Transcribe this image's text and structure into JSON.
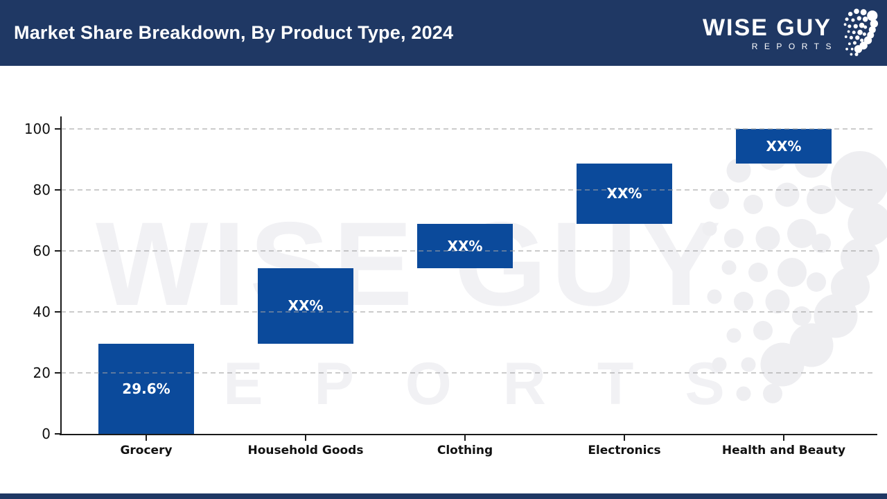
{
  "header": {
    "title": "Market Share Breakdown, By Product Type, 2024",
    "logo": {
      "line1": "WISE GUY",
      "line2": "REPORTS",
      "icon": "wiseguy-head-icon"
    }
  },
  "watermark": {
    "line1": "WISE GUY",
    "line2": "REPORTS",
    "icon": "wiseguy-head-icon"
  },
  "colors": {
    "header_bg": "#1F3864",
    "footer_bg": "#1F3864",
    "bar": "#0B4A9B",
    "grid": "#CFCFCF",
    "axis": "#1A1A1A",
    "bar_label_text": "#FFFFFF",
    "watermark": "#F1F1F4"
  },
  "chart_data": {
    "type": "bar",
    "subtype": "waterfall-floating-bars",
    "title": "Market Share Breakdown, By Product Type, 2024",
    "xlabel": "",
    "ylabel": "",
    "categories": [
      "Grocery",
      "Household Goods",
      "Clothing",
      "Electronics",
      "Health and Beauty"
    ],
    "segments": [
      {
        "category": "Grocery",
        "start": 0,
        "end": 29.6,
        "label": "29.6%"
      },
      {
        "category": "Household Goods",
        "start": 29.6,
        "end": 54.3,
        "label": "XX%"
      },
      {
        "category": "Clothing",
        "start": 54.3,
        "end": 68.9,
        "label": "XX%"
      },
      {
        "category": "Electronics",
        "start": 68.9,
        "end": 88.6,
        "label": "XX%"
      },
      {
        "category": "Health and Beauty",
        "start": 88.6,
        "end": 100,
        "label": "XX%"
      }
    ],
    "yticks": [
      0,
      20,
      40,
      60,
      80,
      100
    ],
    "ylim": [
      0,
      104
    ],
    "grid": "dashed-horizontal-over-bars",
    "legend": "none"
  }
}
